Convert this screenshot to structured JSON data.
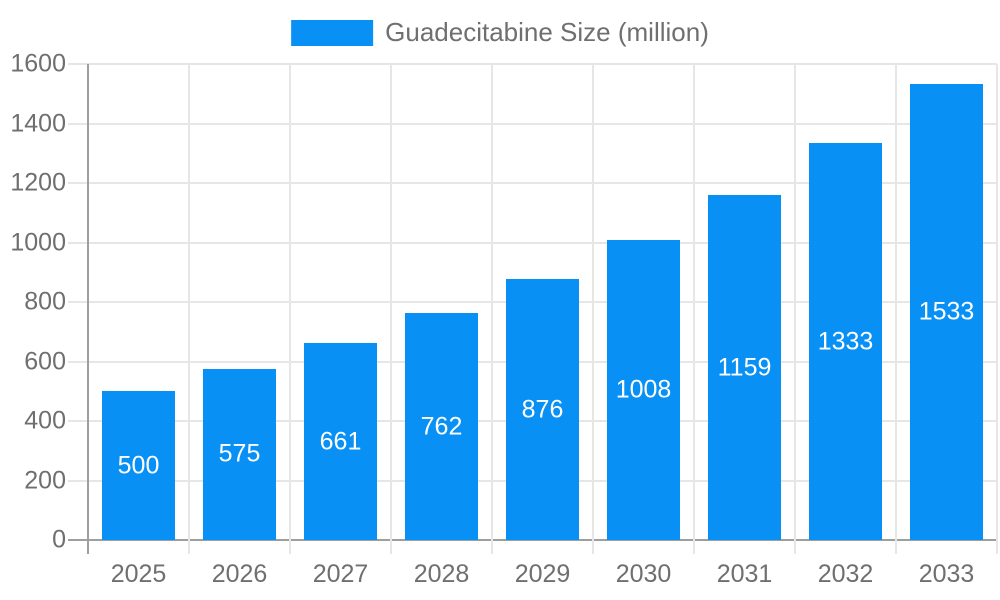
{
  "chart_data": {
    "type": "bar",
    "title": "Guadecitabine Size (million)",
    "xlabel": "",
    "ylabel": "",
    "categories": [
      "2025",
      "2026",
      "2027",
      "2028",
      "2029",
      "2030",
      "2031",
      "2032",
      "2033"
    ],
    "values": [
      500,
      575,
      661,
      762,
      876,
      1008,
      1159,
      1333,
      1533
    ],
    "yticks": [
      0,
      200,
      400,
      600,
      800,
      1000,
      1200,
      1400,
      1600
    ],
    "ylim": [
      0,
      1600
    ],
    "grid": true,
    "legend_position": "top",
    "colors": {
      "bar": "#0890f5",
      "value_label": "#ffffff",
      "axis_text": "#6f6f6f",
      "grid_line": "#e6e6e6",
      "axis_line": "#9e9e9e"
    }
  }
}
